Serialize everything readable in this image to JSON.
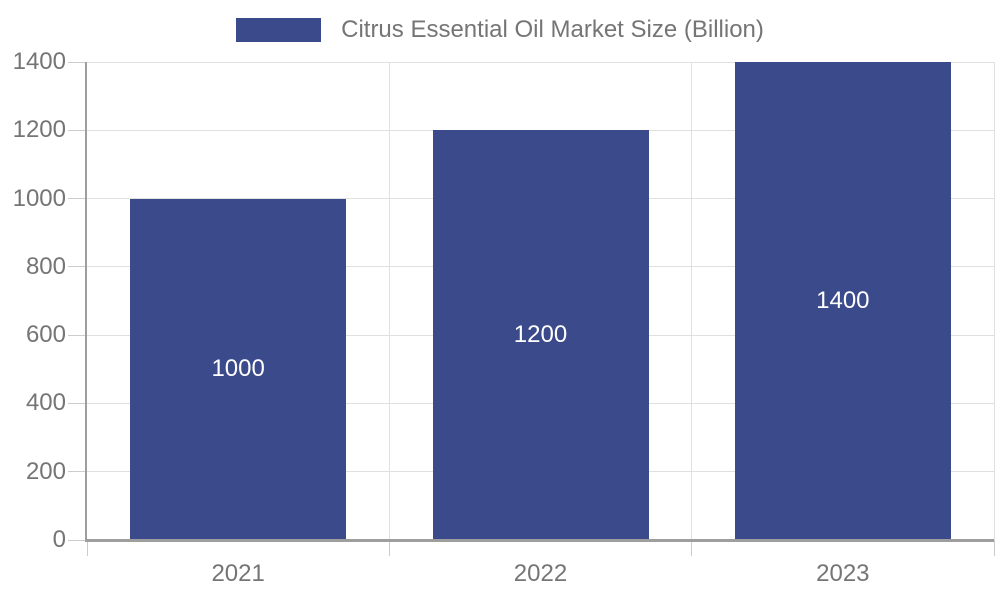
{
  "legend": {
    "label": "Citrus Essential Oil Market Size (Billion)"
  },
  "chart_data": {
    "type": "bar",
    "title": "Citrus Essential Oil Market Size (Billion)",
    "series_name": "Citrus Essential Oil Market Size (Billion)",
    "categories": [
      "2021",
      "2022",
      "2023"
    ],
    "values": [
      1000,
      1200,
      1400
    ],
    "bar_value_labels": [
      "1000",
      "1200",
      "1400"
    ],
    "ylim": [
      0,
      1400
    ],
    "yticks": [
      0,
      200,
      400,
      600,
      800,
      1000,
      1200,
      1400
    ],
    "xlabel": "",
    "ylabel": "",
    "grid": true,
    "legend_position": "top-center",
    "colors": {
      "bar": "#3A4A8A",
      "bar_label_text": "#FFFFFF",
      "axis_line": "#9E9E9E",
      "grid_line": "#E0E0E0",
      "tick_mark": "#CCCCCC",
      "label_text": "#757575",
      "background": "#FFFFFF"
    }
  }
}
